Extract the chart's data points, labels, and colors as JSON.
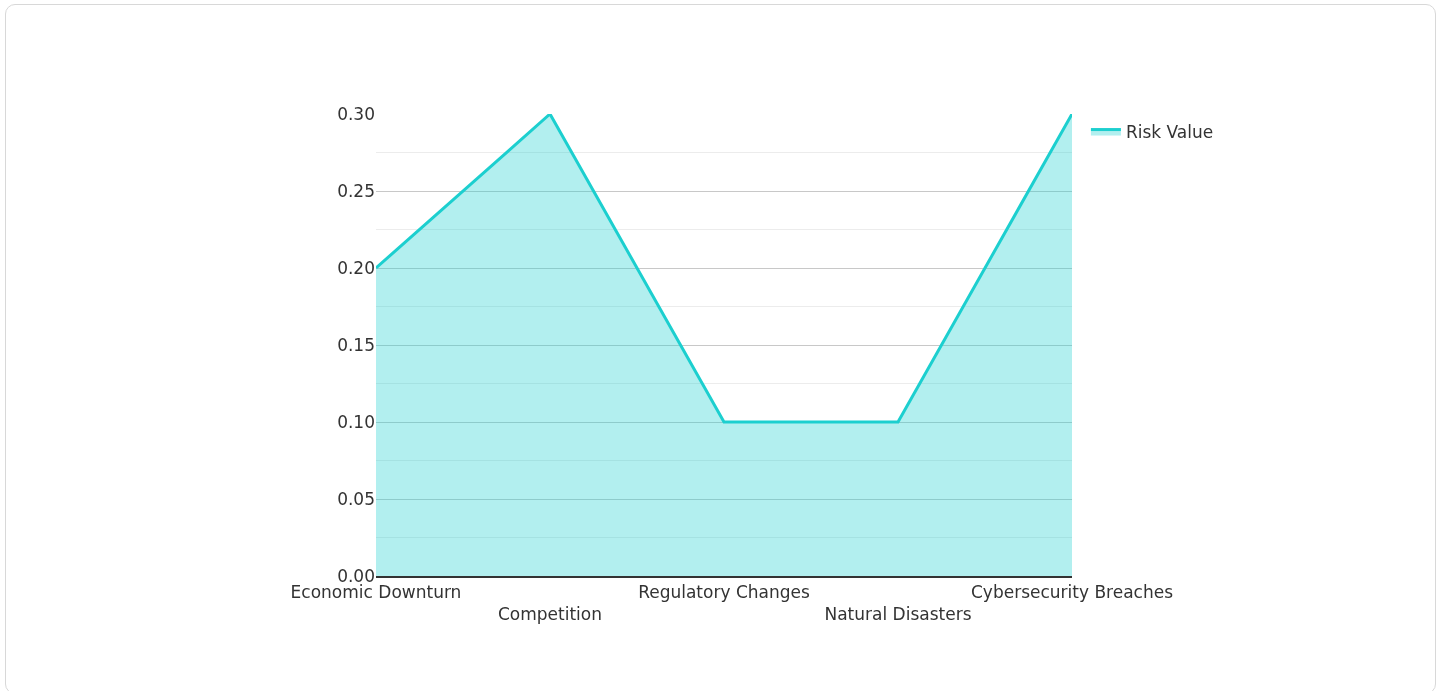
{
  "chart_data": {
    "type": "area",
    "categories": [
      "Economic Downturn",
      "Competition",
      "Regulatory Changes",
      "Natural Disasters",
      "Cybersecurity Breaches"
    ],
    "series": [
      {
        "name": "Risk Value",
        "color": "#1ccfcf",
        "values": [
          0.2,
          0.3,
          0.1,
          0.1,
          0.3
        ]
      }
    ],
    "ylim": [
      0,
      0.3
    ],
    "yticks": [
      {
        "value": 0,
        "label": "0.00"
      },
      {
        "value": 0.05,
        "label": "0.05"
      },
      {
        "value": 0.1,
        "label": "0.10"
      },
      {
        "value": 0.15,
        "label": "0.15"
      },
      {
        "value": 0.2,
        "label": "0.20"
      },
      {
        "value": 0.25,
        "label": "0.25"
      },
      {
        "value": 0.3,
        "label": "0.30"
      }
    ],
    "grid": "y",
    "legend": "top right",
    "marker": "none",
    "line_style": "solid"
  }
}
